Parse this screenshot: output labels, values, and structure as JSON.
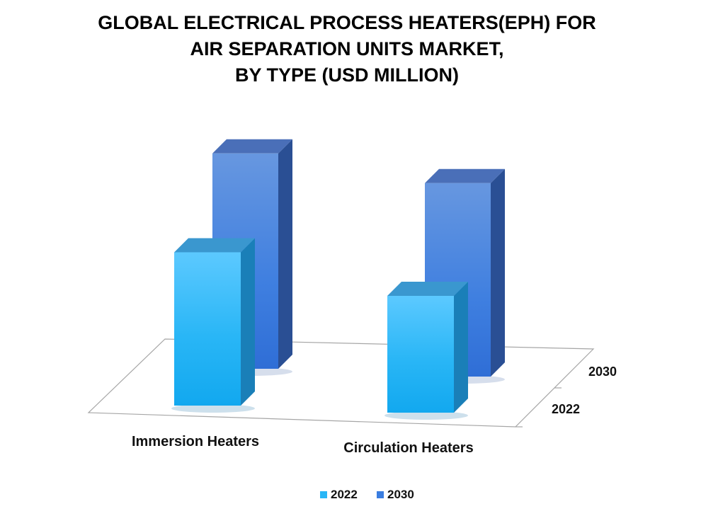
{
  "title_lines": [
    "GLOBAL ELECTRICAL PROCESS HEATERS(EPH) FOR",
    "AIR SEPARATION UNITS MARKET,",
    "BY  TYPE (USD MILLION)"
  ],
  "colors": {
    "series_2022": "#29b6f6",
    "series_2030": "#3a7de0",
    "floor_stroke": "#a6a6a6"
  },
  "chart_data": {
    "type": "bar",
    "view": "3d-clustered-depth",
    "title": "GLOBAL ELECTRICAL PROCESS HEATERS(EPH) FOR AIR SEPARATION UNITS MARKET, BY  TYPE (USD MILLION)",
    "categories": [
      "Immersion Heaters",
      "Circulation Heaters"
    ],
    "series": [
      {
        "name": "2022",
        "values": [
          210,
          160
        ]
      },
      {
        "name": "2030",
        "values": [
          295,
          265
        ]
      }
    ],
    "depth_labels": [
      "2030",
      "2022"
    ],
    "legend": {
      "position": "bottom",
      "items": [
        "2022",
        "2030"
      ]
    },
    "grid": false,
    "ylim": [
      0,
      320
    ]
  }
}
